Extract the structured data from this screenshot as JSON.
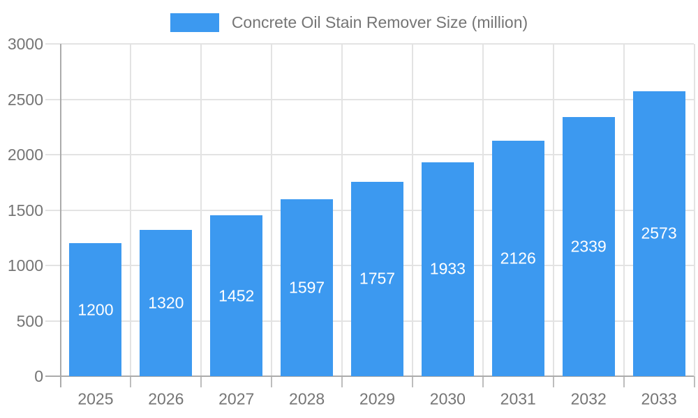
{
  "legend": {
    "label": "Concrete Oil Stain Remover Size (million)"
  },
  "chart_data": {
    "type": "bar",
    "title": "Concrete Oil Stain Remover Size (million)",
    "categories": [
      "2025",
      "2026",
      "2027",
      "2028",
      "2029",
      "2030",
      "2031",
      "2032",
      "2033"
    ],
    "values": [
      1200,
      1320,
      1452,
      1597,
      1757,
      1933,
      2126,
      2339,
      2573
    ],
    "series_name": "Concrete Oil Stain Remover Size (million)",
    "xlabel": "",
    "ylabel": "",
    "ylim": [
      0,
      3000
    ],
    "yticks": [
      0,
      500,
      1000,
      1500,
      2000,
      2500,
      3000
    ],
    "grid": true,
    "legend_position": "top",
    "bar_labels_inside": true
  },
  "colors": {
    "bar": "#3C99F0",
    "grid_line": "#e3e3e3",
    "axis_line": "#ababab",
    "tick_line": "#bdbdbd",
    "label_text": "#757575",
    "bar_label_text": "#ffffff",
    "background": "#ffffff"
  }
}
